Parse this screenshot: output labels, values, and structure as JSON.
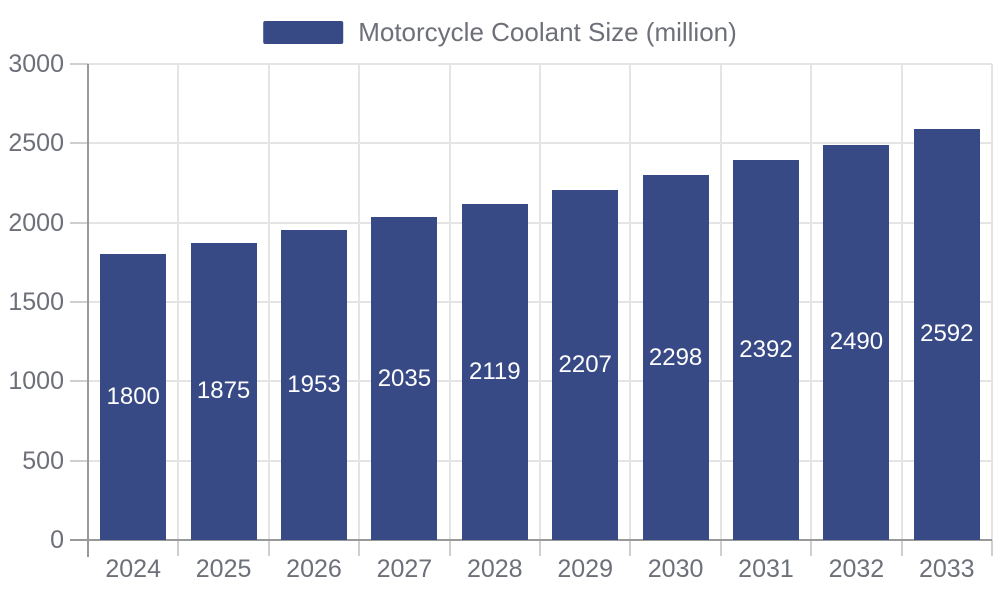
{
  "chart_data": {
    "type": "bar",
    "title": "Motorcycle Coolant Size (million)",
    "legend": {
      "label": "Motorcycle Coolant Size (million)",
      "position": "top-center"
    },
    "categories": [
      "2024",
      "2025",
      "2026",
      "2027",
      "2028",
      "2029",
      "2030",
      "2031",
      "2032",
      "2033"
    ],
    "series": [
      {
        "name": "Motorcycle Coolant Size (million)",
        "values": [
          1800,
          1875,
          1953,
          2035,
          2119,
          2207,
          2298,
          2392,
          2490,
          2592
        ],
        "color": "#384A85"
      }
    ],
    "xlabel": "",
    "ylabel": "",
    "ylim": [
      0,
      3000
    ],
    "yticks": [
      0,
      500,
      1000,
      1500,
      2000,
      2500,
      3000
    ],
    "grid": true,
    "value_labels": "inside-center",
    "colors": {
      "bar": "#384A85",
      "value_label": "#FFFFFF",
      "axis_label": "#6E7079",
      "legend_text": "#6E7079",
      "grid_line": "#E4E4E4",
      "axis_line": "#999999",
      "tick_line": "#CFCFCF",
      "background": "#FFFFFF"
    }
  }
}
